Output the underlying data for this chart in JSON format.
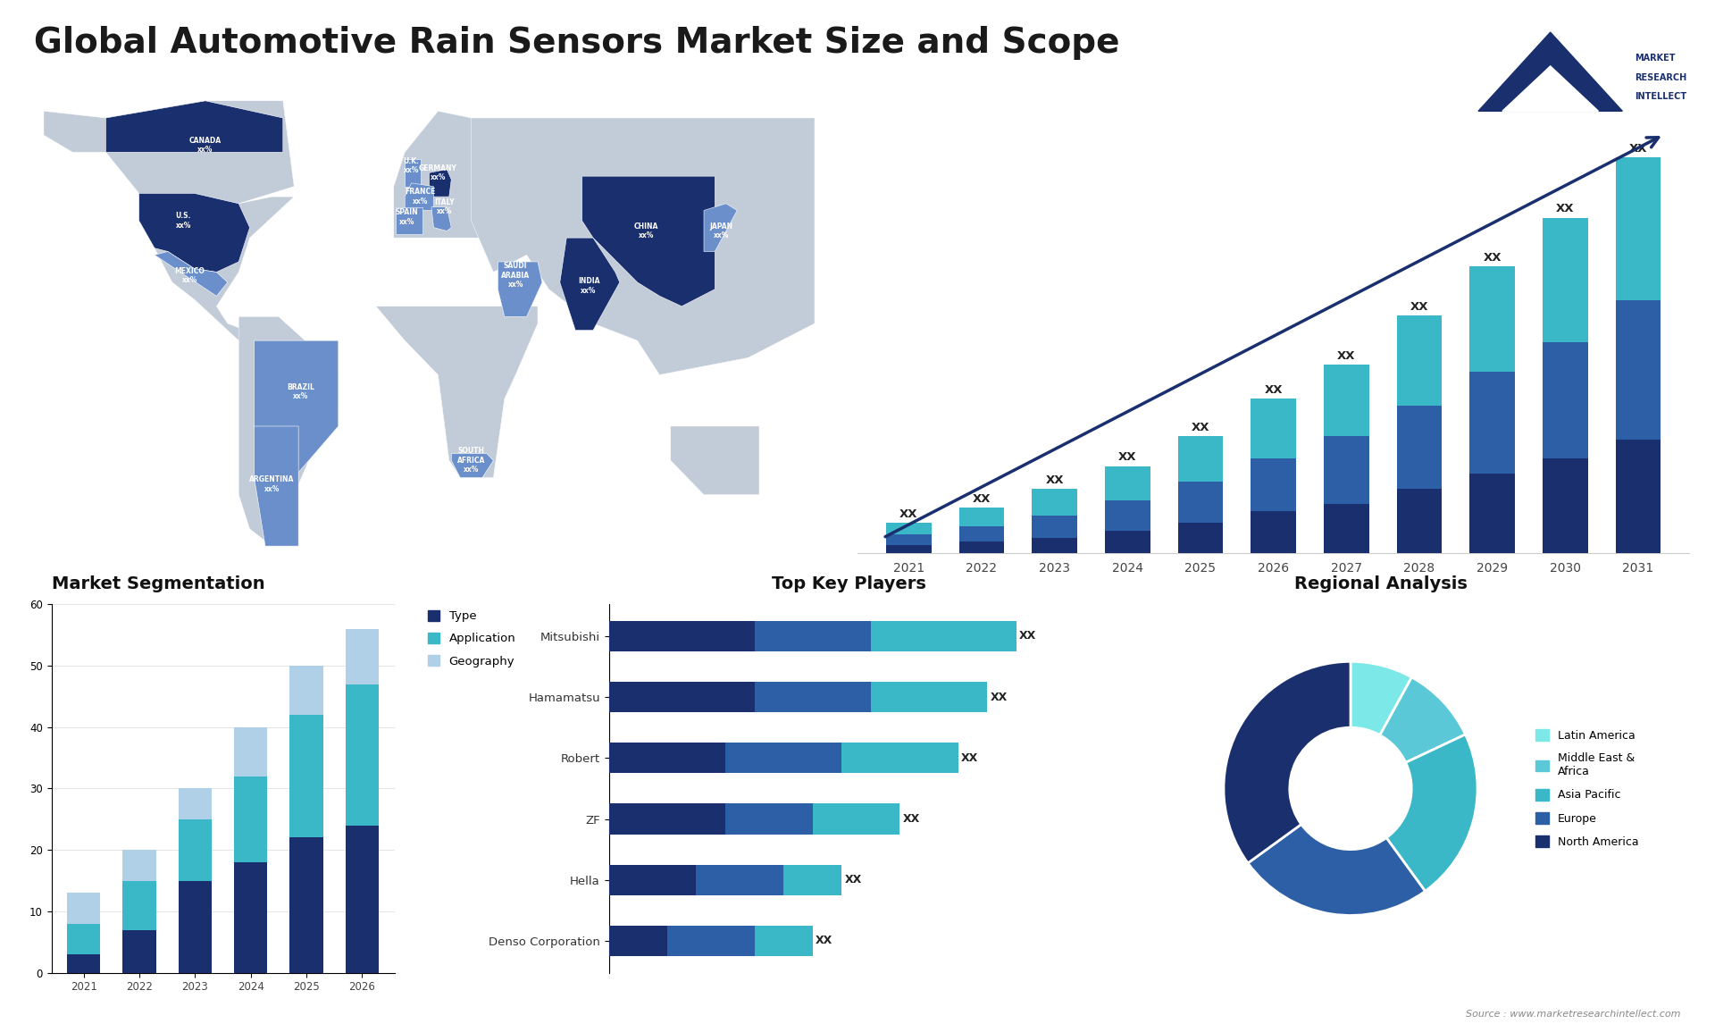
{
  "title": "Global Automotive Rain Sensors Market Size and Scope",
  "title_fontsize": 28,
  "background_color": "#ffffff",
  "bar_chart": {
    "years": [
      "2021",
      "2022",
      "2023",
      "2024",
      "2025",
      "2026",
      "2027",
      "2028",
      "2029",
      "2030",
      "2031"
    ],
    "segment1": [
      2,
      3,
      4,
      6,
      8,
      11,
      13,
      17,
      21,
      25,
      30
    ],
    "segment2": [
      3,
      4,
      6,
      8,
      11,
      14,
      18,
      22,
      27,
      31,
      37
    ],
    "segment3": [
      3,
      5,
      7,
      9,
      12,
      16,
      19,
      24,
      28,
      33,
      38
    ],
    "colors": [
      "#1a2f6e",
      "#2d5fa6",
      "#3ab8c8"
    ],
    "arrow_color": "#1a3a6e"
  },
  "segmentation_chart": {
    "years": [
      "2021",
      "2022",
      "2023",
      "2024",
      "2025",
      "2026"
    ],
    "type_values": [
      3,
      7,
      15,
      18,
      22,
      24
    ],
    "application_values": [
      5,
      8,
      10,
      14,
      20,
      23
    ],
    "geography_values": [
      5,
      5,
      5,
      8,
      8,
      9
    ],
    "colors": [
      "#1a2f6e",
      "#3ab8c8",
      "#b0d0e8"
    ],
    "title": "Market Segmentation",
    "legend_labels": [
      "Type",
      "Application",
      "Geography"
    ]
  },
  "key_players": {
    "title": "Top Key Players",
    "companies": [
      "Mitsubishi",
      "Hamamatsu",
      "Robert",
      "ZF",
      "Hella",
      "Denso Corporation"
    ],
    "bar1_values": [
      5,
      5,
      4,
      4,
      3,
      2
    ],
    "bar2_values": [
      4,
      4,
      4,
      3,
      3,
      3
    ],
    "bar3_values": [
      5,
      4,
      4,
      3,
      2,
      2
    ],
    "colors": [
      "#1a2f6e",
      "#2d5fa6",
      "#3ab8c8"
    ]
  },
  "regional_analysis": {
    "title": "Regional Analysis",
    "labels": [
      "Latin America",
      "Middle East &\nAfrica",
      "Asia Pacific",
      "Europe",
      "North America"
    ],
    "sizes": [
      8,
      10,
      22,
      25,
      35
    ],
    "colors": [
      "#7de8e8",
      "#5bc8d8",
      "#3ab8c8",
      "#2d5fa6",
      "#1a2f6e"
    ]
  },
  "map_labels": [
    {
      "text": "CANADA\nxx%",
      "lon": -95,
      "lat": 62
    },
    {
      "text": "U.S.\nxx%",
      "lon": -105,
      "lat": 40
    },
    {
      "text": "MEXICO\nxx%",
      "lon": -102,
      "lat": 24
    },
    {
      "text": "BRAZIL\nxx%",
      "lon": -52,
      "lat": -10
    },
    {
      "text": "ARGENTINA\nxx%",
      "lon": -65,
      "lat": -37
    },
    {
      "text": "U.K.\nxx%",
      "lon": -2,
      "lat": 56
    },
    {
      "text": "FRANCE\nxx%",
      "lon": 2,
      "lat": 47
    },
    {
      "text": "SPAIN\nxx%",
      "lon": -4,
      "lat": 41
    },
    {
      "text": "GERMANY\nxx%",
      "lon": 10,
      "lat": 54
    },
    {
      "text": "ITALY\nxx%",
      "lon": 13,
      "lat": 44
    },
    {
      "text": "SAUDI\nARABIA\nxx%",
      "lon": 45,
      "lat": 24
    },
    {
      "text": "SOUTH\nAFRICA\nxx%",
      "lon": 25,
      "lat": -30
    },
    {
      "text": "CHINA\nxx%",
      "lon": 104,
      "lat": 37
    },
    {
      "text": "INDIA\nxx%",
      "lon": 78,
      "lat": 21
    },
    {
      "text": "JAPAN\nxx%",
      "lon": 138,
      "lat": 37
    }
  ],
  "source_text": "Source : www.marketresearchintellect.com"
}
